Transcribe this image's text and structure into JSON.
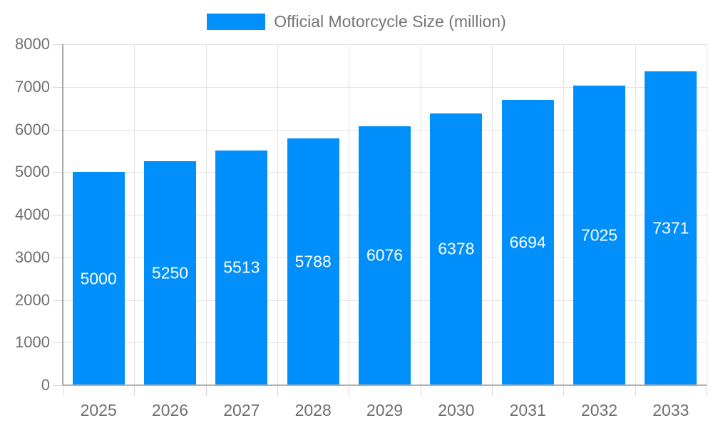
{
  "legend": {
    "label": "Official Motorcycle Size (million)"
  },
  "chart_data": {
    "type": "bar",
    "title": "",
    "categories": [
      "2025",
      "2026",
      "2027",
      "2028",
      "2029",
      "2030",
      "2031",
      "2032",
      "2033"
    ],
    "series": [
      {
        "name": "Official Motorcycle Size (million)",
        "values": [
          5000,
          5250,
          5513,
          5788,
          6076,
          6378,
          6694,
          7025,
          7371
        ]
      }
    ],
    "ylabel": "",
    "xlabel": "",
    "ylim": [
      0,
      8000
    ],
    "yticks": [
      0,
      1000,
      2000,
      3000,
      4000,
      5000,
      6000,
      7000,
      8000
    ],
    "grid": true,
    "legend_position": "top",
    "value_labels_position": "inside-middle"
  },
  "colors": {
    "background": "#ffffff",
    "bar": "#008FFB",
    "grid": "#e2e2e2",
    "axis_line": "#a6a6a6",
    "tick": "#d6d6d6",
    "axis_text": "#6f6f6f",
    "legend_text": "#757575",
    "value_label_text": "#ffffff"
  }
}
